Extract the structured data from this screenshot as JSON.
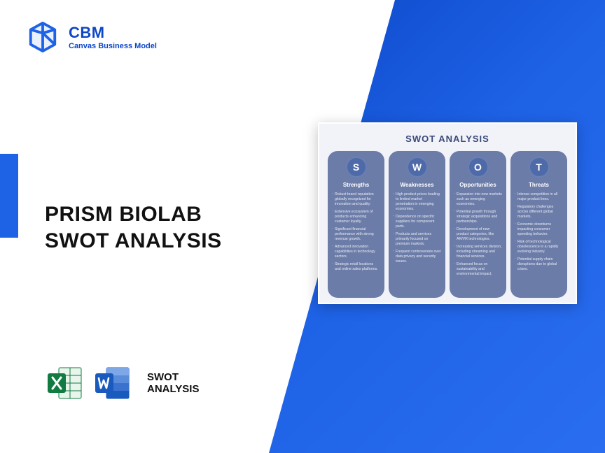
{
  "logo": {
    "abbr": "CBM",
    "tagline": "Canvas Business Model",
    "color": "#0d47c8"
  },
  "title": {
    "line1": "PRISM BIOLAB",
    "line2": "SWOT ANALYSIS"
  },
  "icons_label": {
    "line1": "SWOT",
    "line2": "ANALYSIS"
  },
  "palette": {
    "blue_gradient_start": "#0d47c8",
    "blue_gradient_end": "#2a6df0",
    "accent": "#1e62e6",
    "card_bg": "#f1f3f8",
    "col_bg": "#6c7ca8",
    "circle_bg": "#4f6aa8",
    "excel_green": "#107c41",
    "word_blue": "#185abd"
  },
  "swot": {
    "title": "SWOT ANALYSIS",
    "columns": [
      {
        "letter": "S",
        "heading": "Strengths",
        "items": [
          "Robust brand reputation globally recognized for innovation and quality.",
          "Extensive ecosystem of products enhancing customer loyalty.",
          "Significant financial performance with strong revenue growth.",
          "Advanced innovation capabilities in technology sectors.",
          "Strategic retail locations and online sales platforms."
        ]
      },
      {
        "letter": "W",
        "heading": "Weaknesses",
        "items": [
          "High product prices leading to limited market penetration in emerging economies.",
          "Dependence on specific suppliers for component parts.",
          "Products and services primarily focused on premium markets.",
          "Frequent controversies over data privacy and security issues."
        ]
      },
      {
        "letter": "O",
        "heading": "Opportunities",
        "items": [
          "Expansion into new markets such as emerging economies.",
          "Potential growth through strategic acquisitions and partnerships.",
          "Development of new product categories, like AR/VR technologies.",
          "Increasing services division, including streaming and financial services.",
          "Enhanced focus on sustainability and environmental impact."
        ]
      },
      {
        "letter": "T",
        "heading": "Threats",
        "items": [
          "Intense competition in all major product lines.",
          "Regulatory challenges across different global markets.",
          "Economic downturns impacting consumer spending behavior.",
          "Risk of technological obsolescence in a rapidly evolving industry.",
          "Potential supply chain disruptions due to global crises."
        ]
      }
    ]
  }
}
